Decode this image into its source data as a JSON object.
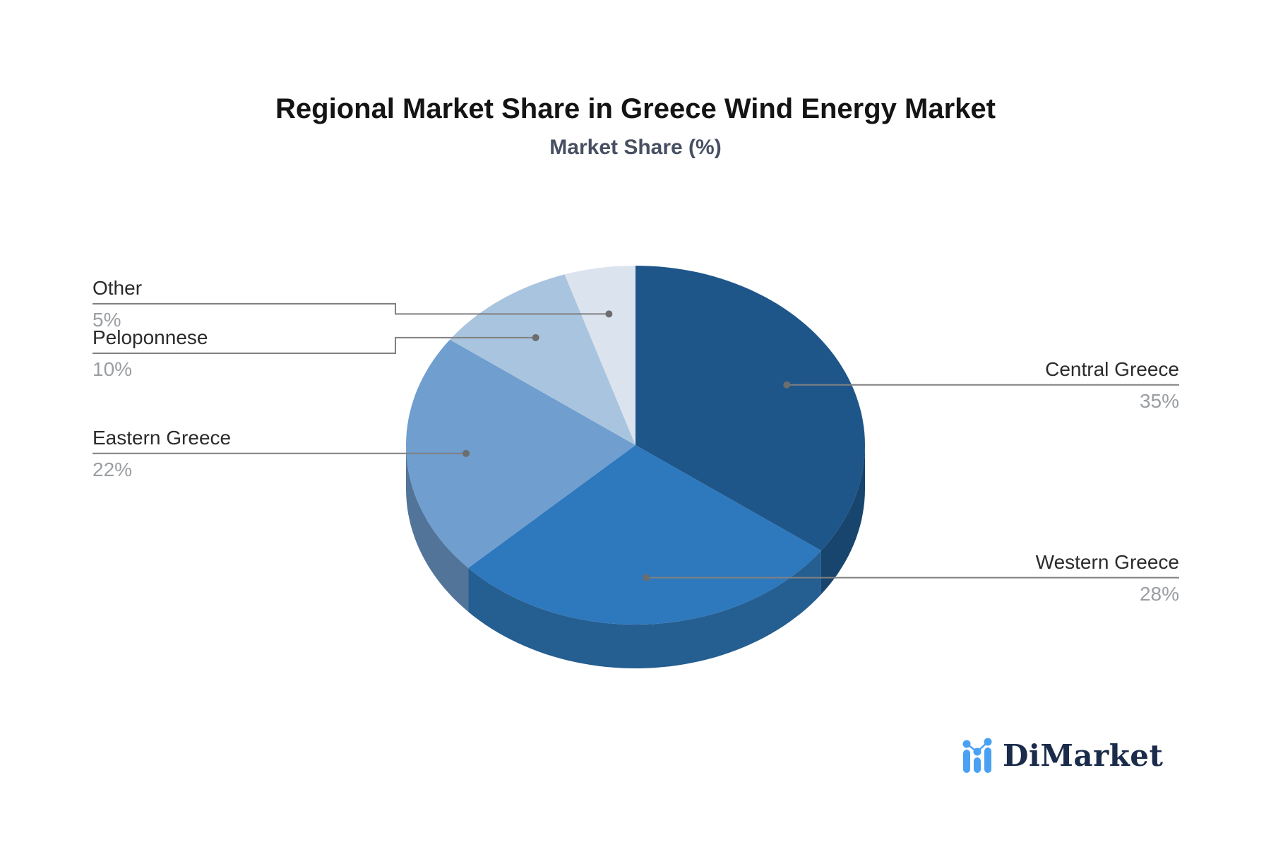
{
  "chart_data": {
    "type": "pie",
    "title": "Regional Market Share in Greece Wind Energy Market",
    "subtitle": "Market Share (%)",
    "unit": "%",
    "direction": "clockwise",
    "start_angle_deg": 0,
    "depth_3d": true,
    "legend_position": "callout-labels",
    "slices": [
      {
        "label": "Central Greece",
        "value": 35,
        "display": "35%",
        "color": "#1E568A",
        "side_color": "#18456E"
      },
      {
        "label": "Western Greece",
        "value": 28,
        "display": "28%",
        "color": "#2E78BD",
        "side_color": "#255E90"
      },
      {
        "label": "Eastern Greece",
        "value": 22,
        "display": "22%",
        "color": "#6F9ECF",
        "side_color": "#527499"
      },
      {
        "label": "Peloponnese",
        "value": 10,
        "display": "10%",
        "color": "#A9C4DE",
        "side_color": "#7E9BBC"
      },
      {
        "label": "Other",
        "value": 5,
        "display": "5%",
        "color": "#DBE3EF",
        "side_color": "#AAB7CB"
      }
    ]
  },
  "palette": {
    "title_color": "#141414",
    "subtitle_color": "#475063",
    "label_color": "#2B2B2B",
    "value_color": "#9A9EA3",
    "leader_line_color": "#808080",
    "leader_dot_color": "#6D6D6D",
    "background": "#FFFFFF"
  },
  "brand": {
    "name": "DiMarket",
    "icon": "bar-chart-logo-icon",
    "accent_color": "#4AA1F3",
    "text_color": "#1B2B4A"
  }
}
